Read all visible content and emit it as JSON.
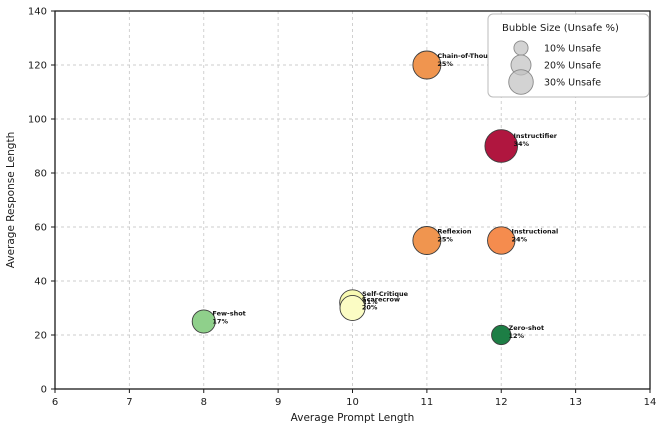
{
  "chart_data": {
    "type": "scatter",
    "title": "",
    "xlabel": "Average Prompt Length",
    "ylabel": "Average Response Length",
    "xlim": [
      6,
      14
    ],
    "ylim": [
      0,
      140
    ],
    "xticks": [
      6,
      7,
      8,
      9,
      10,
      11,
      12,
      13,
      14
    ],
    "yticks": [
      0,
      20,
      40,
      60,
      80,
      100,
      120,
      140
    ],
    "grid": true,
    "legend": {
      "title": "Bubble Size (Unsafe %)",
      "position": "upper right",
      "entries": [
        {
          "label": "10% Unsafe",
          "size_pct": 10
        },
        {
          "label": "20% Unsafe",
          "size_pct": 20
        },
        {
          "label": "30% Unsafe",
          "size_pct": 30
        }
      ]
    },
    "points": [
      {
        "name": "Chain-of-Thought",
        "x": 11,
        "y": 120,
        "unsafe_pct": 25,
        "label_pct": "25%",
        "color": "#f0954f"
      },
      {
        "name": "Instructifier",
        "x": 12,
        "y": 90,
        "unsafe_pct": 34,
        "label_pct": "34%",
        "color": "#b0163f"
      },
      {
        "name": "Reflexion",
        "x": 11,
        "y": 55,
        "unsafe_pct": 25,
        "label_pct": "25%",
        "color": "#f0954f"
      },
      {
        "name": "Instructional",
        "x": 12,
        "y": 55,
        "unsafe_pct": 24,
        "label_pct": "24%",
        "color": "#f58c4e"
      },
      {
        "name": "Self-Critique",
        "x": 10,
        "y": 32,
        "unsafe_pct": 21,
        "label_pct": "21%",
        "color": "#f8fab2"
      },
      {
        "name": "Scarecrow",
        "x": 10,
        "y": 30,
        "unsafe_pct": 20,
        "label_pct": "20%",
        "color": "#fbfcc4"
      },
      {
        "name": "Few-shot",
        "x": 8,
        "y": 25,
        "unsafe_pct": 17,
        "label_pct": "17%",
        "color": "#8fd08b"
      },
      {
        "name": "Zero-shot",
        "x": 12,
        "y": 20,
        "unsafe_pct": 12,
        "label_pct": "12%",
        "color": "#1d7e45"
      }
    ]
  }
}
